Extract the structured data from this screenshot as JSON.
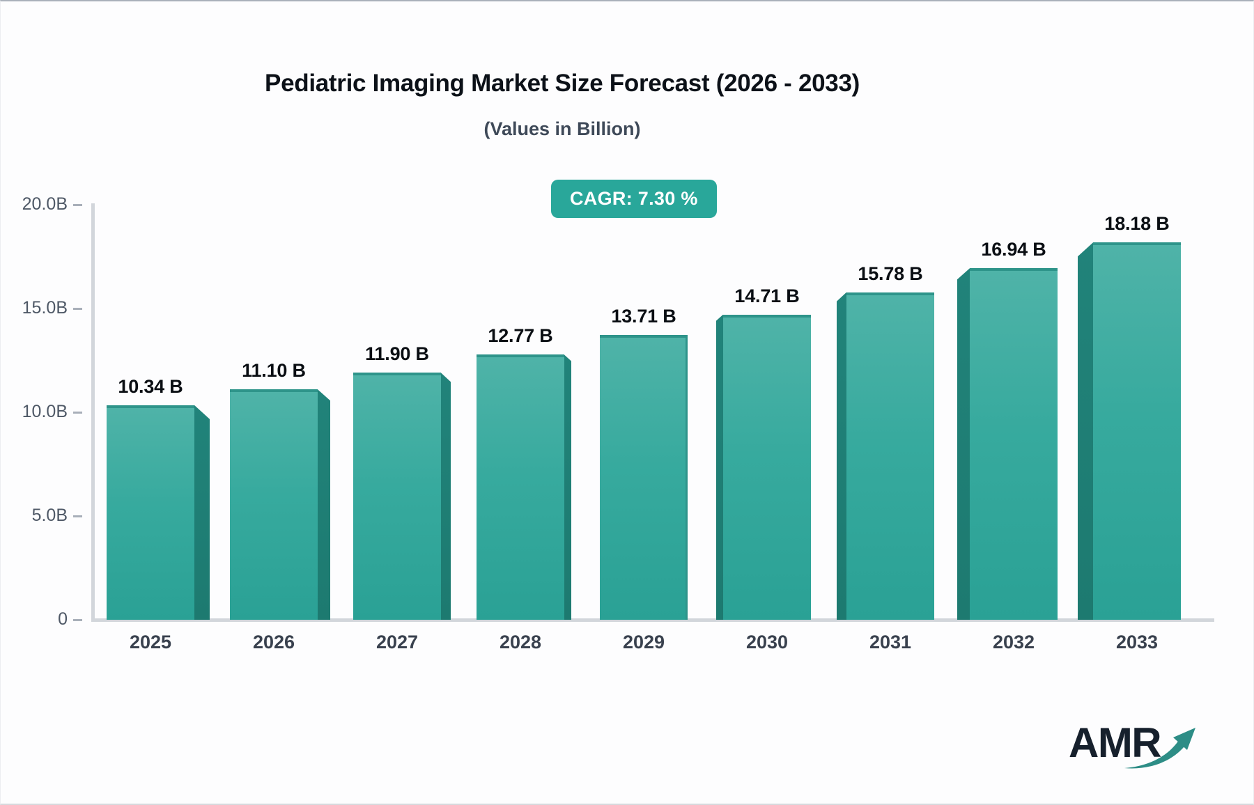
{
  "header": {
    "title": "Pediatric Imaging Market Size Forecast (2026 - 2033)",
    "subtitle": "(Values in Billion)"
  },
  "badge": {
    "label": "CAGR: 7.30 %"
  },
  "chart_data": {
    "type": "bar",
    "title": "Pediatric Imaging Market Size Forecast (2026 - 2033)",
    "subtitle": "(Values in Billion)",
    "unit": "Billion",
    "cagr": "7.30 %",
    "categories": [
      "2025",
      "2026",
      "2027",
      "2028",
      "2029",
      "2030",
      "2031",
      "2032",
      "2033"
    ],
    "values": [
      10.34,
      11.1,
      11.9,
      12.77,
      13.71,
      14.71,
      15.78,
      16.94,
      18.18
    ],
    "value_labels": [
      "10.34 B",
      "11.10 B",
      "11.90 B",
      "12.77 B",
      "13.71 B",
      "14.71 B",
      "15.78 B",
      "16.94 B",
      "18.18 B"
    ],
    "xlabel": "",
    "ylabel": "",
    "ylim": [
      0,
      20
    ],
    "yticks": [
      {
        "value": 0,
        "label": "0"
      },
      {
        "value": 5,
        "label": "5.0B"
      },
      {
        "value": 10,
        "label": "10.0B"
      },
      {
        "value": 15,
        "label": "15.0B"
      },
      {
        "value": 20,
        "label": "20.0B"
      }
    ],
    "grid": false,
    "legend": false,
    "bar_style": "3d-perspective"
  },
  "logo": {
    "text": "AMR",
    "icon": "growth-arrow-icon"
  },
  "colors": {
    "bar_fill_top": "#4fb3a8",
    "bar_fill_bottom": "#2aa195",
    "bar_side": "#1d7a70",
    "bar_top_edge": "#2e948a",
    "badge_bg": "#29a79a",
    "badge_text": "#ffffff",
    "axis": "#d2d6db",
    "title_text": "#0c1118",
    "logo_text": "#16202c",
    "logo_arrow": "#2d8d86"
  }
}
